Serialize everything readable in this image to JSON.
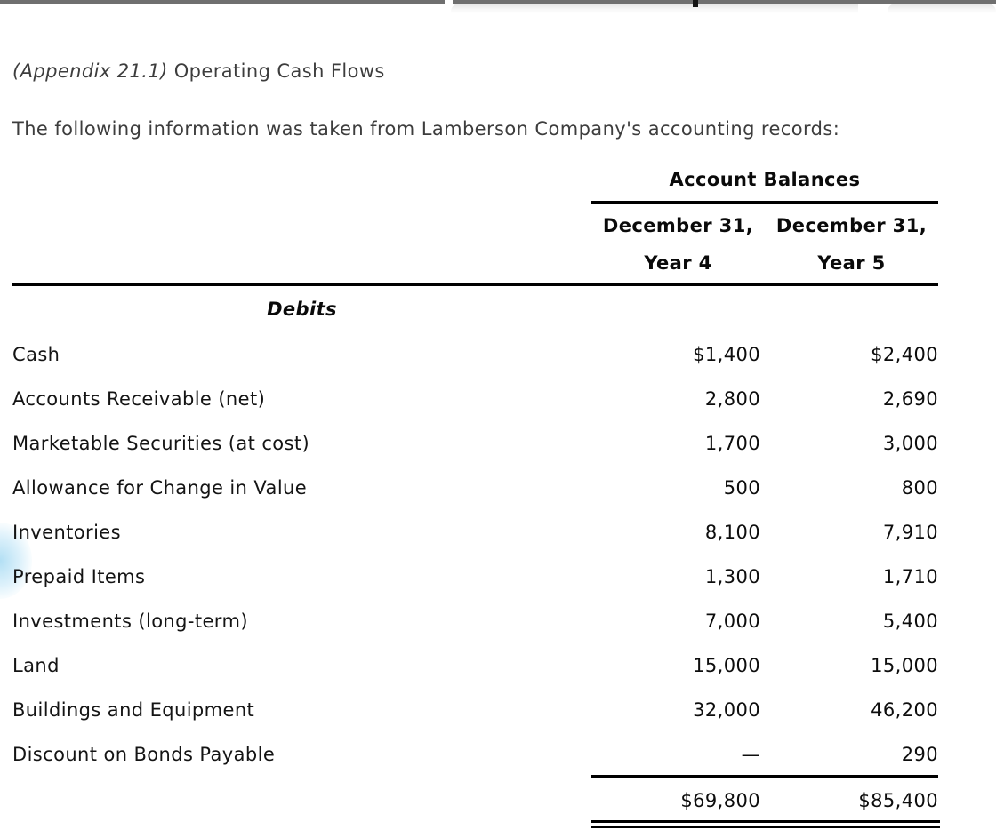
{
  "document": {
    "title_italic": "(Appendix 21.1)",
    "title_rest": " Operating Cash Flows",
    "intro": "The following information was taken from Lamberson Company's accounting records:"
  },
  "table": {
    "group_header": "Account Balances",
    "columns": {
      "year4_line1": "December 31,",
      "year4_line2": "Year 4",
      "year5_line1": "December 31,",
      "year5_line2": "Year 5"
    },
    "section_header": "Debits",
    "rows": [
      {
        "label": "Cash",
        "year4": "$1,400",
        "year5": "$2,400"
      },
      {
        "label": "Accounts Receivable (net)",
        "year4": "2,800",
        "year5": "2,690"
      },
      {
        "label": "Marketable Securities (at cost)",
        "year4": "1,700",
        "year5": "3,000"
      },
      {
        "label": "Allowance for Change in Value",
        "year4": "500",
        "year5": "800"
      },
      {
        "label": "Inventories",
        "year4": "8,100",
        "year5": "7,910"
      },
      {
        "label": "Prepaid Items",
        "year4": "1,300",
        "year5": "1,710"
      },
      {
        "label": "Investments (long-term)",
        "year4": "7,000",
        "year5": "5,400"
      },
      {
        "label": "Land",
        "year4": "15,000",
        "year5": "15,000"
      },
      {
        "label": "Buildings and Equipment",
        "year4": "32,000",
        "year5": "46,200"
      },
      {
        "label": "Discount on Bonds Payable",
        "year4": "—",
        "year5": "290"
      }
    ],
    "totals": {
      "year4": "$69,800",
      "year5": "$85,400"
    }
  },
  "colors": {
    "topbar_gray": "#6f6f6f",
    "rule_black": "#000000",
    "body_text": "#3d3d3d",
    "highlight_glow_blue": "#89cee9"
  }
}
